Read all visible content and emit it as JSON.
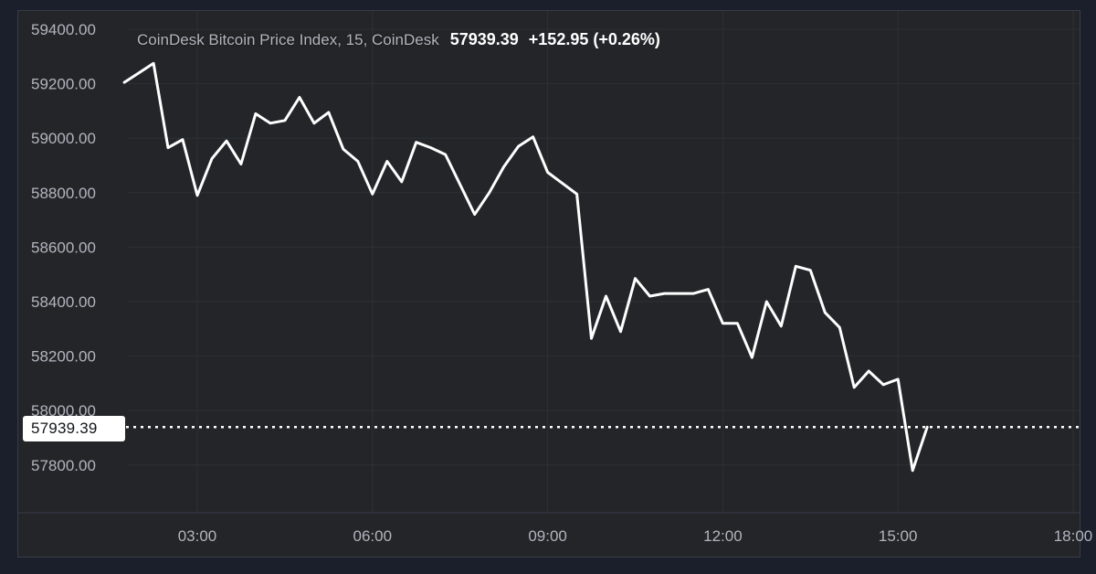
{
  "legend": {
    "title": "CoinDesk Bitcoin Price Index, 15, CoinDesk",
    "last_price": "57939.39",
    "change": "+152.95 (+0.26%)"
  },
  "colors": {
    "page_background": "#1a1f2b",
    "pane_background": "#232528",
    "gridline": "#2d3036",
    "axis_text": "#b2b5be",
    "widget_border": "#373c47",
    "series_line": "#ffffff",
    "current_price_dotted_line": "#ffffff",
    "price_tag_background": "#ffffff",
    "price_tag_text": "#121418"
  },
  "chart_data": {
    "type": "line",
    "title": "CoinDesk Bitcoin Price Index, 15, CoinDesk",
    "interval_minutes": 15,
    "source": "CoinDesk",
    "last_price": 57939.39,
    "change": 152.95,
    "change_pct": 0.26,
    "current_price_line": 57939.39,
    "grid": true,
    "legend_position": "top-left",
    "price_scale_side": "left",
    "xlabel": "",
    "ylabel": "",
    "xlim": [
      "00:00",
      "18:05"
    ],
    "ylim": [
      57630,
      59470
    ],
    "y_ticks": [
      59400,
      59200,
      59000,
      58800,
      58600,
      58400,
      58200,
      58000,
      57800
    ],
    "x_tick_labels": [
      "03:00",
      "06:00",
      "09:00",
      "12:00",
      "15:00",
      "18:00"
    ],
    "series": [
      {
        "name": "CoinDesk Bitcoin Price Index",
        "x": [
          "01:45",
          "02:00",
          "02:15",
          "02:30",
          "02:45",
          "03:00",
          "03:15",
          "03:30",
          "03:45",
          "04:00",
          "04:15",
          "04:30",
          "04:45",
          "05:00",
          "05:15",
          "05:30",
          "05:45",
          "06:00",
          "06:15",
          "06:30",
          "06:45",
          "07:00",
          "07:15",
          "07:30",
          "07:45",
          "08:00",
          "08:15",
          "08:30",
          "08:45",
          "09:00",
          "09:15",
          "09:30",
          "09:45",
          "10:00",
          "10:15",
          "10:30",
          "10:45",
          "11:00",
          "11:15",
          "11:30",
          "11:45",
          "12:00",
          "12:15",
          "12:30",
          "12:45",
          "13:00",
          "13:15",
          "13:30",
          "13:45",
          "14:00",
          "14:15",
          "14:30",
          "14:45",
          "15:00",
          "15:15",
          "15:30"
        ],
        "values": [
          59205,
          59240,
          59275,
          58965,
          58995,
          58790,
          58925,
          58990,
          58905,
          59090,
          59055,
          59065,
          59150,
          59055,
          59095,
          58960,
          58915,
          58795,
          58915,
          58840,
          58985,
          58965,
          58940,
          58830,
          58720,
          58800,
          58895,
          58970,
          59005,
          58875,
          58835,
          58795,
          58265,
          58420,
          58290,
          58485,
          58420,
          58430,
          58430,
          58430,
          58445,
          58320,
          58320,
          58195,
          58400,
          58310,
          58530,
          58515,
          58360,
          58305,
          58085,
          58145,
          58095,
          58115,
          57780,
          57939.39
        ]
      }
    ]
  }
}
